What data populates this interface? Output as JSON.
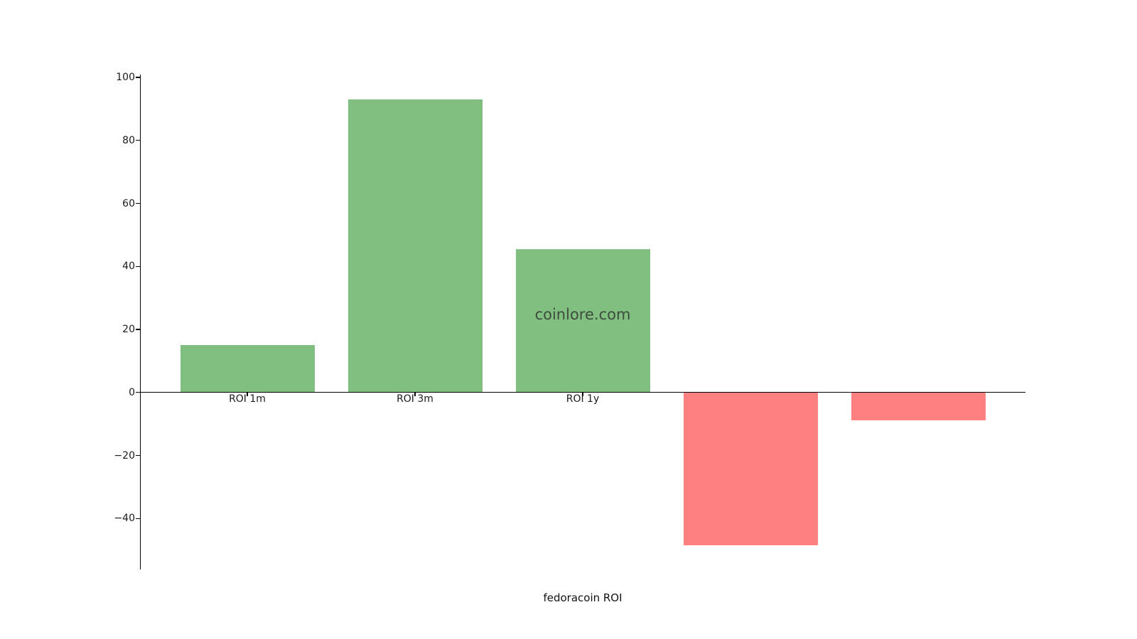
{
  "page": {
    "background": "#ffffff"
  },
  "chart_data": {
    "type": "bar",
    "title": "",
    "xlabel": "fedoracoin ROI",
    "ylabel": "",
    "watermark": "coinlore.com",
    "categories": [
      "ROI 1m",
      "ROI 3m",
      "ROI 1y",
      "",
      ""
    ],
    "values": [
      15,
      93,
      45.5,
      -48.5,
      -8.8
    ],
    "yticks": [
      100,
      80,
      60,
      40,
      20,
      0,
      -20,
      -40
    ],
    "ylim": [
      -56.2,
      100.9
    ],
    "grid": false,
    "legend": "none",
    "colors": {
      "positive": "#80BF80",
      "negative": "#FF8080",
      "axis": "#000000",
      "tick_text": "#1a1a1a",
      "watermark_text": "#343C34"
    }
  }
}
